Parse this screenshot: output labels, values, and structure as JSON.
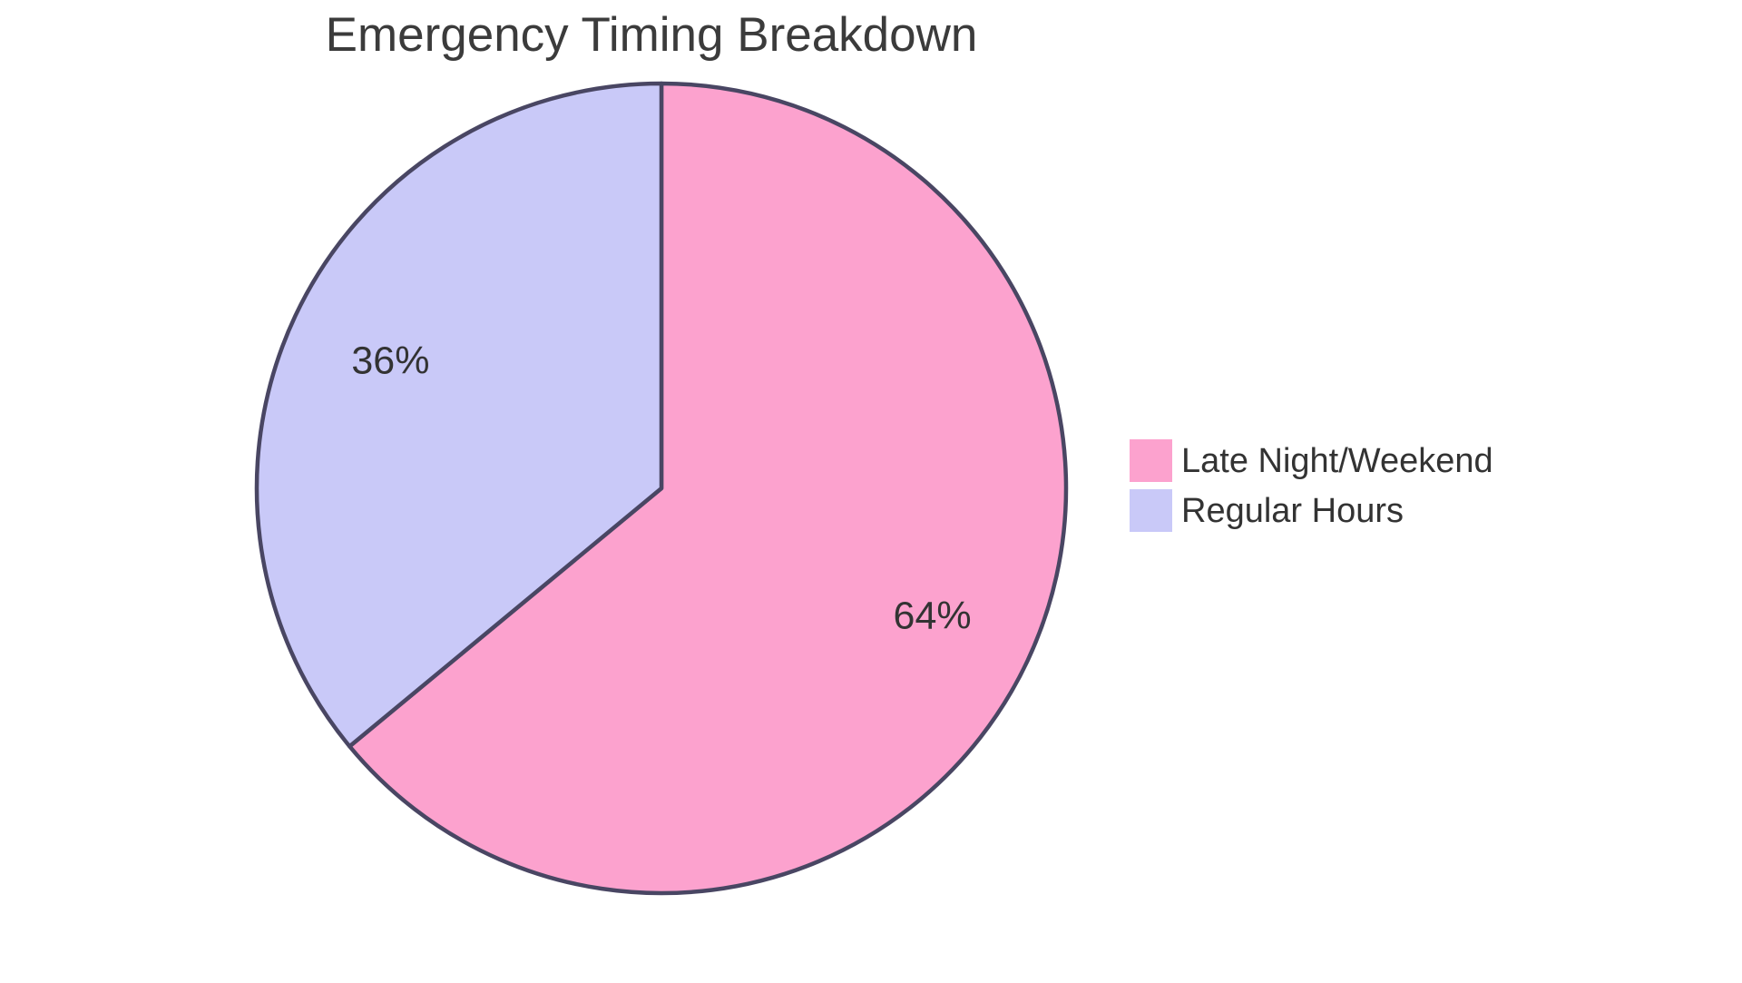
{
  "colors": {
    "background": "#ffffff",
    "outline": "#494663",
    "title_text": "#3b3b3b",
    "label_text": "#333333",
    "legend_text": "#333333"
  },
  "chart_data": {
    "type": "pie",
    "title": "Emergency Timing Breakdown",
    "direction": "clockwise",
    "start_angle_deg": 0,
    "legend_position": "middle-right",
    "labels_inside": true,
    "slices": [
      {
        "label": "Late Night/Weekend",
        "value": 64,
        "percent_label": "64%",
        "color": "#FCA2CE"
      },
      {
        "label": "Regular Hours",
        "value": 36,
        "percent_label": "36%",
        "color": "#C9C9F8"
      }
    ]
  }
}
